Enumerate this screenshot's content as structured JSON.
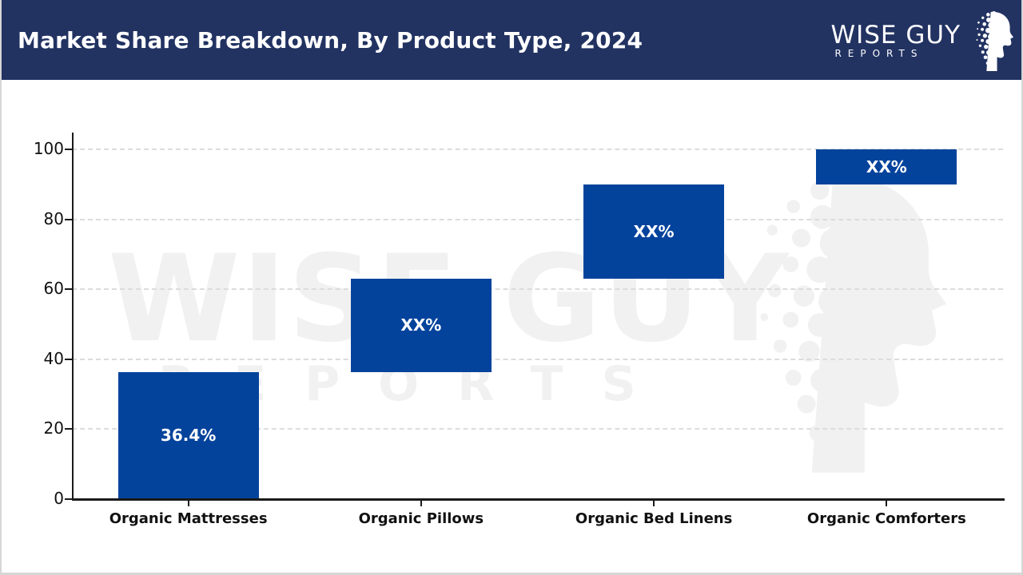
{
  "header": {
    "title": "Market Share Breakdown, By Product Type, 2024",
    "logo": {
      "line1": "WISE GUY",
      "line2": "REPORTS"
    }
  },
  "watermark": {
    "line1": "WISE GUY",
    "line2": "REPORTS"
  },
  "colors": {
    "header_bg": "#223362",
    "bar": "#04439c",
    "grid": "#dcdcdc",
    "watermark": "#f1f1f1",
    "axis": "#1a1a1a",
    "text": "#111111",
    "on_bar": "#ffffff",
    "page_border": "#d6d6d6"
  },
  "chart_data": {
    "type": "bar",
    "subtype": "floating-waterfall",
    "title": "Market Share Breakdown, By Product Type, 2024",
    "xlabel": "",
    "ylabel": "",
    "categories": [
      "Organic Mattresses",
      "Organic Pillows",
      "Organic Bed Linens",
      "Organic Comforters"
    ],
    "segments": [
      {
        "category": "Organic Mattresses",
        "start": 0,
        "end": 36.4,
        "label": "36.4%"
      },
      {
        "category": "Organic Pillows",
        "start": 36.4,
        "end": 63,
        "label": "XX%"
      },
      {
        "category": "Organic Bed Linens",
        "start": 63,
        "end": 90,
        "label": "XX%"
      },
      {
        "category": "Organic Comforters",
        "start": 90,
        "end": 100,
        "label": "XX%"
      }
    ],
    "yticks": [
      0,
      20,
      40,
      60,
      80,
      100
    ],
    "ylim": [
      0,
      105
    ],
    "grid": {
      "horizontal": true,
      "style": "dashed"
    },
    "legend": null,
    "bar_color": "#04439c",
    "value_label_color": "#ffffff"
  }
}
